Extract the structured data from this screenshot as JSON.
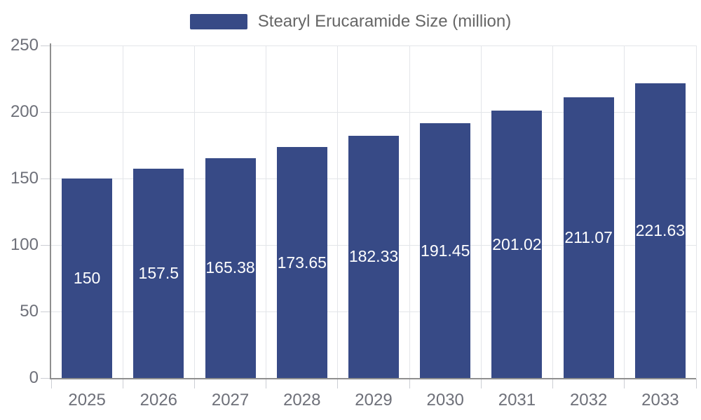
{
  "chart_data": {
    "type": "bar",
    "title": "",
    "legend": "Stearyl Erucaramide Size (million)",
    "categories": [
      "2025",
      "2026",
      "2027",
      "2028",
      "2029",
      "2030",
      "2031",
      "2032",
      "2033"
    ],
    "values": [
      150,
      157.5,
      165.38,
      173.65,
      182.33,
      191.45,
      201.02,
      211.07,
      221.63
    ],
    "value_labels": [
      "150",
      "157.5",
      "165.38",
      "173.65",
      "182.33",
      "191.45",
      "201.02",
      "211.07",
      "221.63"
    ],
    "ylim": [
      0,
      250
    ],
    "yticks": [
      0,
      50,
      100,
      150,
      200,
      250
    ],
    "ytick_labels": [
      "0",
      "50",
      "100",
      "150",
      "200",
      "250"
    ],
    "grid": true,
    "legend_position": "top-center",
    "value_label_position": "inside-middle",
    "colors": {
      "bar": "#374A86",
      "value_label": "#FFFFFF",
      "axis_label": "#6E7079",
      "legend_text": "#666666",
      "gridline": "#E3E5E9",
      "axis_line": "#8F8F8F",
      "tick": "#CCCED4",
      "background": "#FFFFFF"
    }
  }
}
